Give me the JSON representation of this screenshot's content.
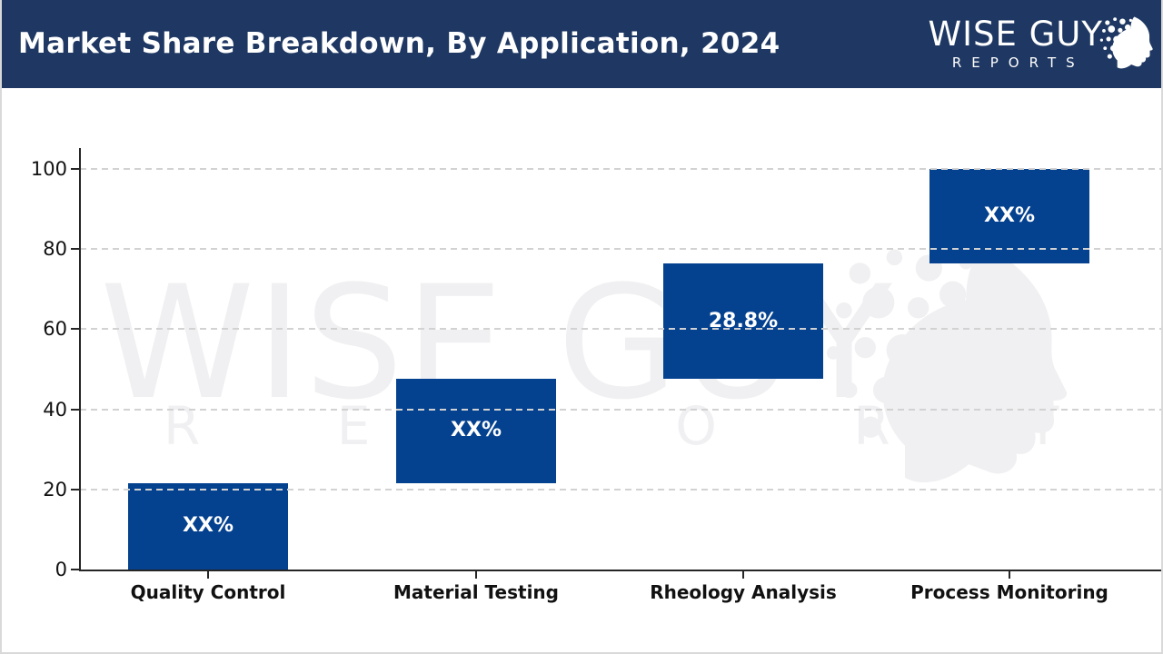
{
  "header": {
    "title": "Market Share Breakdown, By Application, 2024",
    "logo": {
      "name_line": "WISE GUY",
      "sub_line": "REPORTS"
    }
  },
  "watermark": {
    "name_line": "WISE GUY",
    "sub_line": "R E P O R T S"
  },
  "colors": {
    "header_bg": "#1f3863",
    "bar": "#04418f",
    "grid": "#d2d2d2",
    "axis": "#262626",
    "watermark": "#f0f0f2",
    "title_text": "#ffffff",
    "bar_label_text": "#ffffff",
    "category_text": "#111111"
  },
  "chart_data": {
    "type": "bar",
    "subtype": "waterfall",
    "title": "Market Share Breakdown, By Application, 2024",
    "categories": [
      "Quality Control",
      "Material Testing",
      "Rheology Analysis",
      "Process Monitoring"
    ],
    "bars": [
      {
        "category": "Quality Control",
        "start": 0,
        "end": 21.6,
        "value": 21.6,
        "value_label": "XX%"
      },
      {
        "category": "Material Testing",
        "start": 21.6,
        "end": 47.6,
        "value": 26.0,
        "value_label": "XX%"
      },
      {
        "category": "Rheology Analysis",
        "start": 47.6,
        "end": 76.4,
        "value": 28.8,
        "value_label": "28.8%"
      },
      {
        "category": "Process Monitoring",
        "start": 76.4,
        "end": 100,
        "value": 23.6,
        "value_label": "XX%"
      }
    ],
    "xlabel": "",
    "ylabel": "",
    "ylim": [
      0,
      100
    ],
    "yticks": [
      0,
      20,
      40,
      60,
      80,
      100
    ],
    "grid": "horizontal-dashed",
    "legend": "none",
    "bar_color": "#04418f",
    "note": "Cumulative waterfall-style bars; only Rheology Analysis shows its numeric share (28.8%), other segments are masked as XX%. Start/end values estimated from gridlines."
  }
}
